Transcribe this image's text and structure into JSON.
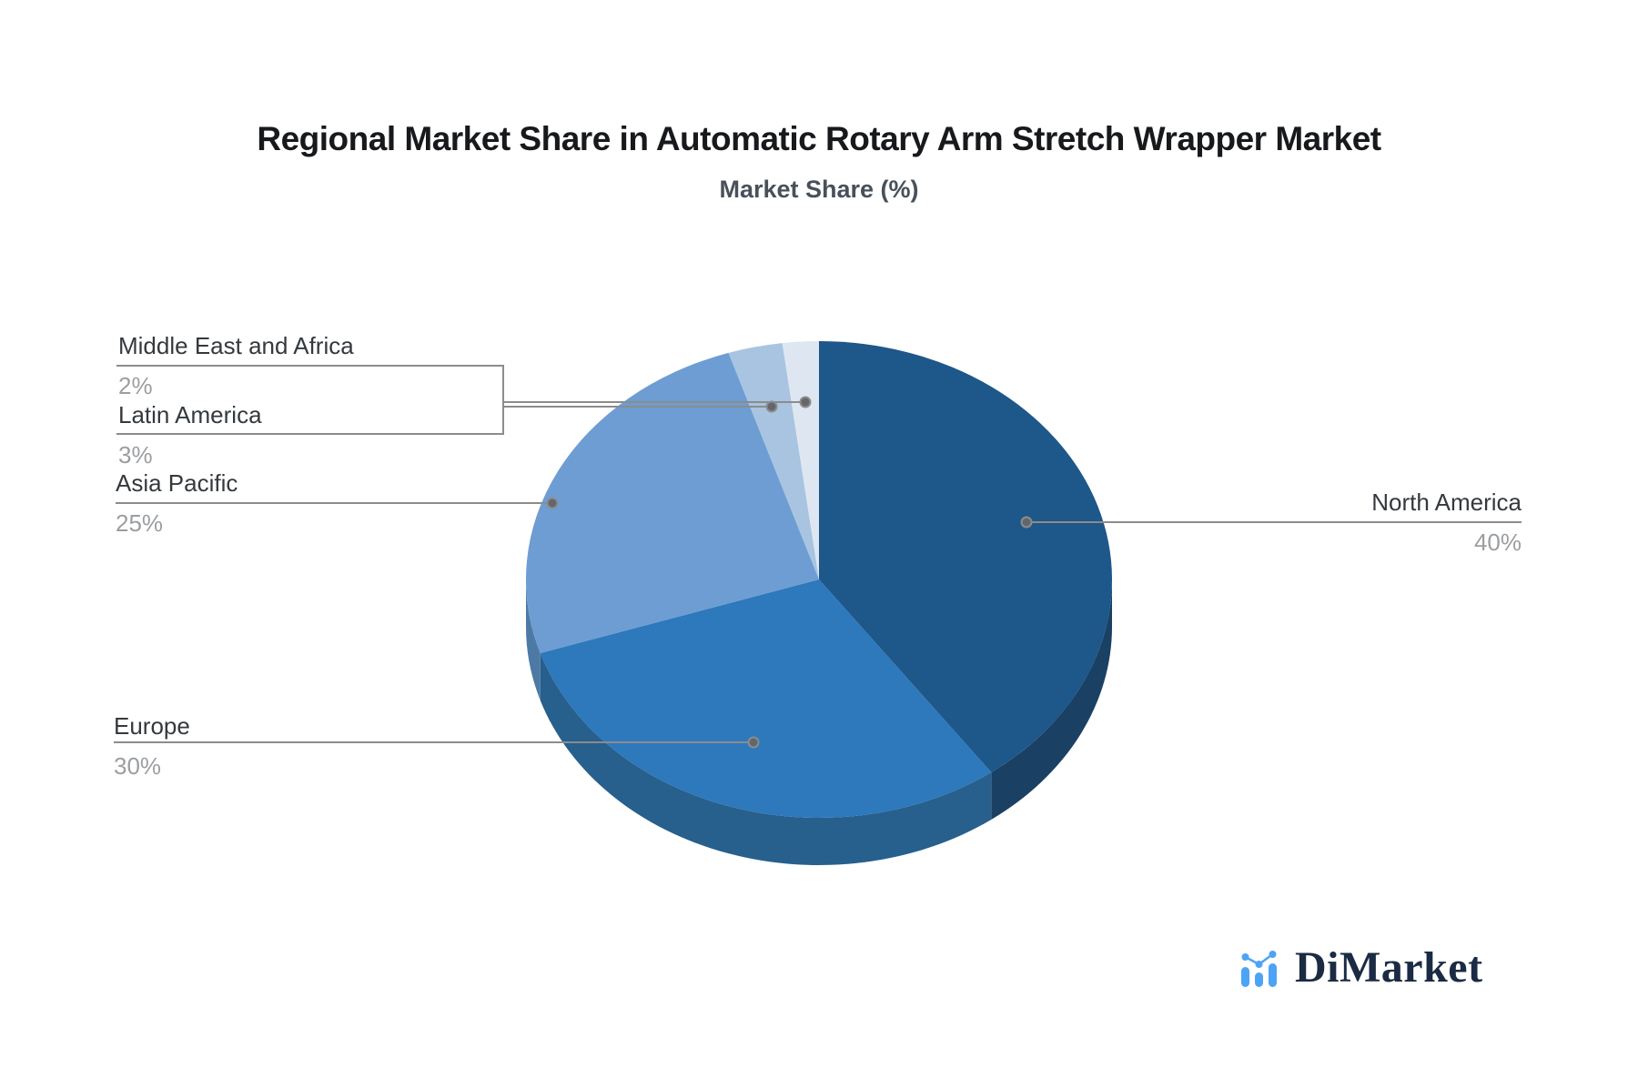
{
  "header": {
    "title": "Regional Market Share in Automatic Rotary Arm Stretch Wrapper Market",
    "subtitle": "Market Share (%)"
  },
  "brand": {
    "name": "DiMarket",
    "icon_color": "#4da4f5",
    "text_color": "#1b2b44"
  },
  "chart_data": {
    "type": "pie",
    "title": "Regional Market Share in Automatic Rotary Arm Stretch Wrapper Market",
    "subtitle": "Market Share (%)",
    "unit": "%",
    "style": "3d-pie",
    "start_angle_deg": 0,
    "direction": "clockwise",
    "leader_line_color": "#8c8c8c",
    "dot_color": "#646669",
    "slices": [
      {
        "label": "North America",
        "value": 40,
        "pct": "40%",
        "color": "#1e5789",
        "side": "#1a4064"
      },
      {
        "label": "Europe",
        "value": 30,
        "pct": "30%",
        "color": "#2e78bc",
        "side": "#275f8d"
      },
      {
        "label": "Asia Pacific",
        "value": 25,
        "pct": "25%",
        "color": "#6d9dd2",
        "side": "#4d7aa4"
      },
      {
        "label": "Latin America",
        "value": 3,
        "pct": "3%",
        "color": "#a8c4e1",
        "side": "#7f9cbd"
      },
      {
        "label": "Middle East and Africa",
        "value": 2,
        "pct": "2%",
        "color": "#dee7f1",
        "side": "#b3c3d6"
      }
    ]
  }
}
